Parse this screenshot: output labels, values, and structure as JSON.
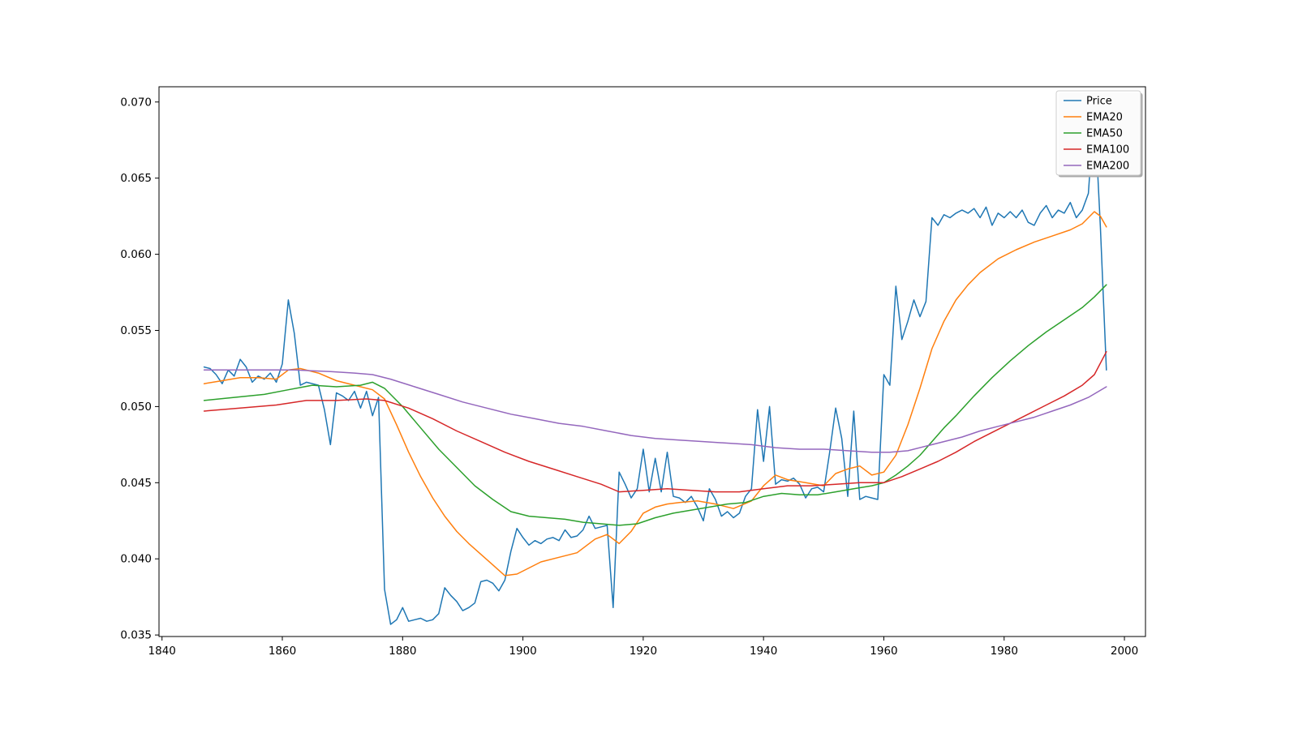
{
  "figure": {
    "background": "#ffffff"
  },
  "chart_data": {
    "type": "line",
    "title": "",
    "xlabel": "",
    "ylabel": "",
    "xlim": [
      1839.5,
      2003.5
    ],
    "ylim": [
      0.0349,
      0.071
    ],
    "xticks": [
      1840,
      1860,
      1880,
      1900,
      1920,
      1940,
      1960,
      1980,
      2000
    ],
    "yticks": [
      0.035,
      0.04,
      0.045,
      0.05,
      0.055,
      0.06,
      0.065,
      0.07
    ],
    "ytick_decimals": 3,
    "grid": false,
    "frame_color": "#000000",
    "legend": {
      "position": "upper right",
      "entries": [
        "Price",
        "EMA20",
        "EMA50",
        "EMA100",
        "EMA200"
      ],
      "edge_color": "#cccccc",
      "face_color": "#ffffff",
      "shadow_color": "#aaaaaa"
    },
    "series": [
      {
        "name": "Price",
        "color": "#1f77b4",
        "x0": 1847,
        "dx": 1,
        "y": [
          0.0526,
          0.0525,
          0.0521,
          0.0515,
          0.0524,
          0.052,
          0.0531,
          0.0526,
          0.0516,
          0.052,
          0.0518,
          0.0522,
          0.0516,
          0.0528,
          0.057,
          0.0548,
          0.0514,
          0.0516,
          0.0515,
          0.0514,
          0.0498,
          0.0475,
          0.0509,
          0.0507,
          0.0504,
          0.051,
          0.0499,
          0.051,
          0.0494,
          0.0506,
          0.038,
          0.0357,
          0.036,
          0.0368,
          0.0359,
          0.036,
          0.0361,
          0.0359,
          0.036,
          0.0364,
          0.0381,
          0.0376,
          0.0372,
          0.0366,
          0.0368,
          0.0371,
          0.0385,
          0.0386,
          0.0384,
          0.0379,
          0.0386,
          0.0405,
          0.042,
          0.0414,
          0.0409,
          0.0412,
          0.041,
          0.0413,
          0.0414,
          0.0412,
          0.0419,
          0.0414,
          0.0415,
          0.0419,
          0.0428,
          0.042,
          0.0421,
          0.0422,
          0.0368,
          0.0457,
          0.0449,
          0.044,
          0.0446,
          0.0472,
          0.0444,
          0.0466,
          0.0444,
          0.047,
          0.0441,
          0.044,
          0.0437,
          0.0441,
          0.0434,
          0.0425,
          0.0446,
          0.0439,
          0.0428,
          0.0431,
          0.0427,
          0.043,
          0.0441,
          0.0446,
          0.0498,
          0.0464,
          0.05,
          0.0449,
          0.0452,
          0.0451,
          0.0453,
          0.0449,
          0.044,
          0.0446,
          0.0447,
          0.0444,
          0.047,
          0.0499,
          0.0479,
          0.0441,
          0.0497,
          0.0439,
          0.0441,
          0.044,
          0.0439,
          0.0521,
          0.0514,
          0.0579,
          0.0544,
          0.0556,
          0.057,
          0.0559,
          0.0569,
          0.0624,
          0.0619,
          0.0626,
          0.0624,
          0.0627,
          0.0629,
          0.0627,
          0.063,
          0.0624,
          0.0631,
          0.0619,
          0.0627,
          0.0624,
          0.0628,
          0.0624,
          0.0629,
          0.0621,
          0.0619,
          0.0627,
          0.0632,
          0.0624,
          0.0629,
          0.0627,
          0.0634,
          0.0624,
          0.0629,
          0.064,
          0.0697,
          0.0618,
          0.0524
        ]
      },
      {
        "name": "EMA20",
        "color": "#ff7f0e",
        "x": [
          1847,
          1850,
          1853,
          1856,
          1859,
          1861,
          1863,
          1866,
          1869,
          1872,
          1875,
          1877,
          1879,
          1881,
          1883,
          1885,
          1887,
          1889,
          1891,
          1893,
          1895,
          1897,
          1899,
          1901,
          1903,
          1906,
          1909,
          1912,
          1914,
          1916,
          1918,
          1920,
          1922,
          1924,
          1926,
          1929,
          1932,
          1935,
          1938,
          1940,
          1942,
          1944,
          1947,
          1950,
          1952,
          1954,
          1956,
          1958,
          1960,
          1962,
          1964,
          1966,
          1968,
          1970,
          1972,
          1974,
          1976,
          1979,
          1982,
          1985,
          1988,
          1991,
          1993,
          1995,
          1996,
          1997
        ],
        "y": [
          0.0515,
          0.0517,
          0.0519,
          0.0519,
          0.0518,
          0.0524,
          0.0525,
          0.0522,
          0.0517,
          0.0514,
          0.0511,
          0.0505,
          0.0488,
          0.047,
          0.0454,
          0.044,
          0.0428,
          0.0418,
          0.041,
          0.0403,
          0.0396,
          0.0389,
          0.039,
          0.0394,
          0.0398,
          0.0401,
          0.0404,
          0.0413,
          0.0416,
          0.041,
          0.0418,
          0.043,
          0.0434,
          0.0436,
          0.0437,
          0.0438,
          0.0436,
          0.0433,
          0.0438,
          0.0448,
          0.0455,
          0.0452,
          0.045,
          0.0448,
          0.0456,
          0.0459,
          0.0461,
          0.0455,
          0.0457,
          0.0468,
          0.0488,
          0.0512,
          0.0538,
          0.0556,
          0.057,
          0.058,
          0.0588,
          0.0597,
          0.0603,
          0.0608,
          0.0612,
          0.0616,
          0.062,
          0.0628,
          0.0625,
          0.0618
        ]
      },
      {
        "name": "EMA50",
        "color": "#2ca02c",
        "x": [
          1847,
          1852,
          1857,
          1861,
          1865,
          1869,
          1873,
          1875,
          1877,
          1880,
          1883,
          1886,
          1889,
          1892,
          1895,
          1898,
          1901,
          1904,
          1907,
          1910,
          1913,
          1916,
          1919,
          1922,
          1925,
          1928,
          1931,
          1934,
          1937,
          1940,
          1943,
          1946,
          1949,
          1952,
          1955,
          1958,
          1960,
          1962,
          1964,
          1966,
          1968,
          1970,
          1972,
          1975,
          1978,
          1981,
          1984,
          1987,
          1990,
          1993,
          1995,
          1997
        ],
        "y": [
          0.0504,
          0.0506,
          0.0508,
          0.0511,
          0.0514,
          0.0513,
          0.0514,
          0.0516,
          0.0512,
          0.05,
          0.0486,
          0.0472,
          0.046,
          0.0448,
          0.0439,
          0.0431,
          0.0428,
          0.0427,
          0.0426,
          0.0424,
          0.0423,
          0.0422,
          0.0423,
          0.0427,
          0.043,
          0.0432,
          0.0434,
          0.0436,
          0.0437,
          0.0441,
          0.0443,
          0.0442,
          0.0442,
          0.0444,
          0.0446,
          0.0448,
          0.045,
          0.0455,
          0.0461,
          0.0468,
          0.0477,
          0.0486,
          0.0494,
          0.0507,
          0.0519,
          0.053,
          0.054,
          0.0549,
          0.0557,
          0.0565,
          0.0572,
          0.058
        ]
      },
      {
        "name": "EMA100",
        "color": "#d62728",
        "x": [
          1847,
          1853,
          1859,
          1864,
          1869,
          1874,
          1877,
          1881,
          1885,
          1889,
          1893,
          1897,
          1901,
          1905,
          1909,
          1913,
          1916,
          1920,
          1924,
          1928,
          1932,
          1936,
          1940,
          1944,
          1948,
          1952,
          1956,
          1960,
          1963,
          1966,
          1969,
          1972,
          1975,
          1978,
          1981,
          1984,
          1987,
          1990,
          1993,
          1995,
          1997
        ],
        "y": [
          0.0497,
          0.0499,
          0.0501,
          0.0504,
          0.0504,
          0.0505,
          0.0504,
          0.0499,
          0.0492,
          0.0484,
          0.0477,
          0.047,
          0.0464,
          0.0459,
          0.0454,
          0.0449,
          0.0444,
          0.0445,
          0.0446,
          0.0445,
          0.0444,
          0.0444,
          0.0446,
          0.0448,
          0.0448,
          0.0449,
          0.045,
          0.045,
          0.0454,
          0.0459,
          0.0464,
          0.047,
          0.0477,
          0.0483,
          0.0489,
          0.0495,
          0.0501,
          0.0507,
          0.0514,
          0.0521,
          0.0536
        ]
      },
      {
        "name": "EMA200",
        "color": "#9467bd",
        "x": [
          1847,
          1855,
          1862,
          1868,
          1872,
          1875,
          1878,
          1882,
          1886,
          1890,
          1894,
          1898,
          1902,
          1906,
          1910,
          1914,
          1918,
          1922,
          1926,
          1930,
          1934,
          1938,
          1942,
          1946,
          1950,
          1954,
          1958,
          1961,
          1964,
          1967,
          1970,
          1973,
          1976,
          1979,
          1982,
          1985,
          1988,
          1991,
          1994,
          1997
        ],
        "y": [
          0.0524,
          0.0524,
          0.0524,
          0.0523,
          0.0522,
          0.0521,
          0.0518,
          0.0513,
          0.0508,
          0.0503,
          0.0499,
          0.0495,
          0.0492,
          0.0489,
          0.0487,
          0.0484,
          0.0481,
          0.0479,
          0.0478,
          0.0477,
          0.0476,
          0.0475,
          0.0473,
          0.0472,
          0.0472,
          0.0471,
          0.047,
          0.047,
          0.0471,
          0.0474,
          0.0477,
          0.048,
          0.0484,
          0.0487,
          0.049,
          0.0493,
          0.0497,
          0.0501,
          0.0506,
          0.0513
        ]
      }
    ]
  }
}
